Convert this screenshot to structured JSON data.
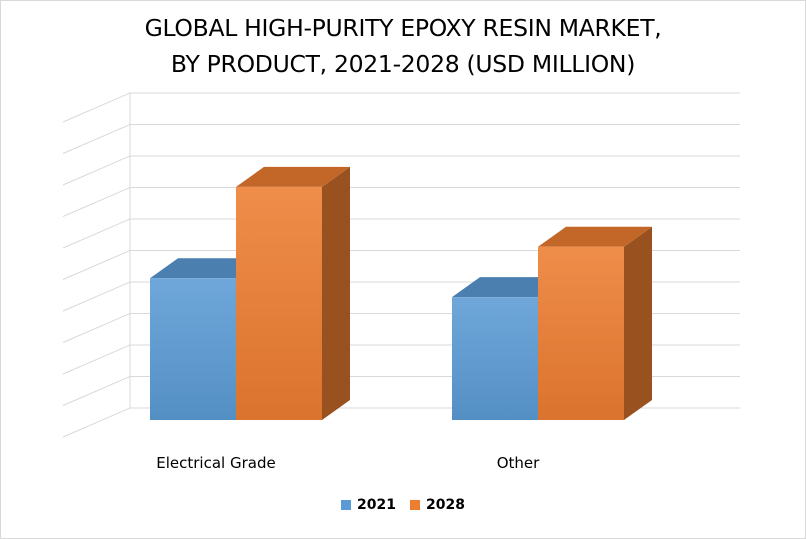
{
  "colors": {
    "s2021": "#5b9bd5",
    "s2028": "#ed7d31",
    "grid": "#d9d9d9"
  },
  "chart_data": {
    "type": "bar",
    "title_line1": "GLOBAL HIGH-PURITY EPOXY RESIN MARKET,",
    "title_line2": "BY PRODUCT, 2021-2028 (USD MILLION)",
    "categories": [
      "Electrical Grade",
      "Other"
    ],
    "series": [
      {
        "name": "2021",
        "values": [
          4.5,
          3.9
        ]
      },
      {
        "name": "2028",
        "values": [
          7.4,
          5.5
        ]
      }
    ],
    "ylim": [
      0,
      10
    ],
    "grid": true,
    "legend": "bottom"
  }
}
